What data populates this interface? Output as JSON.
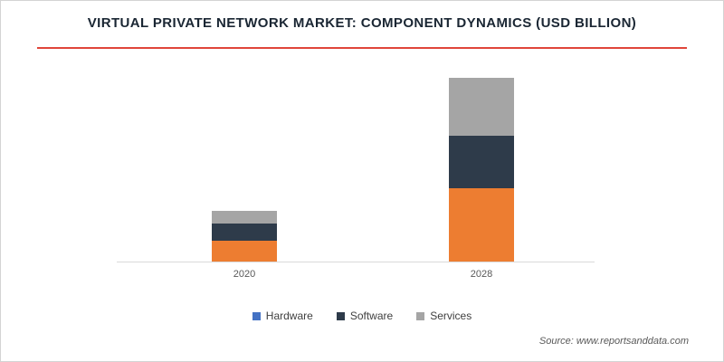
{
  "title": "VIRTUAL PRIVATE NETWORK MARKET: COMPONENT DYNAMICS (USD BILLION)",
  "accent_rule_color": "#e0453a",
  "source": "Source: www.reportsanddata.com",
  "legend": {
    "items": [
      {
        "label": "Hardware",
        "color": "#4472c4"
      },
      {
        "label": "Software",
        "color": "#2e3b4a"
      },
      {
        "label": "Services",
        "color": "#a5a5a5"
      }
    ]
  },
  "chart_data": {
    "type": "bar",
    "stacked": true,
    "title": "VIRTUAL PRIVATE NETWORK MARKET: COMPONENT DYNAMICS (USD BILLION)",
    "categories": [
      "2020",
      "2028"
    ],
    "series": [
      {
        "name": "Hardware",
        "color": "#ed7d31",
        "values": [
          13,
          46
        ]
      },
      {
        "name": "Software",
        "color": "#2e3b4a",
        "values": [
          11,
          33
        ]
      },
      {
        "name": "Services",
        "color": "#a5a5a5",
        "values": [
          8,
          37
        ]
      }
    ],
    "xlabel": "",
    "ylabel": "",
    "ylim": [
      0,
      130
    ],
    "grid": false,
    "legend_position": "bottom",
    "axis_values_shown": false
  }
}
